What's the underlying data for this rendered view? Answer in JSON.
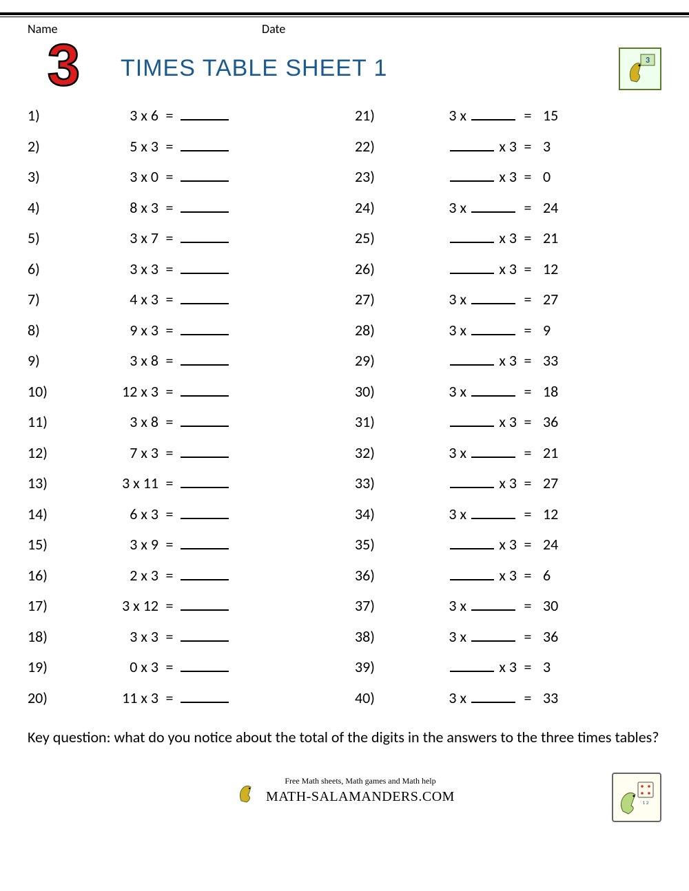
{
  "labels": {
    "name": "Name",
    "date": "Date"
  },
  "title": "TIMES TABLE SHEET 1",
  "colors": {
    "title": "#1b5a8f",
    "three_fill": "#d91c1c",
    "three_stroke": "#000000"
  },
  "left": [
    {
      "n": "1)",
      "expr": "3 x 6"
    },
    {
      "n": "2)",
      "expr": "5 x 3"
    },
    {
      "n": "3)",
      "expr": "3 x 0"
    },
    {
      "n": "4)",
      "expr": "8 x 3"
    },
    {
      "n": "5)",
      "expr": "3 x 7"
    },
    {
      "n": "6)",
      "expr": "3 x 3"
    },
    {
      "n": "7)",
      "expr": "4 x 3"
    },
    {
      "n": "8)",
      "expr": "9 x 3"
    },
    {
      "n": "9)",
      "expr": "3 x 8"
    },
    {
      "n": "10)",
      "expr": "12 x 3"
    },
    {
      "n": "11)",
      "expr": "3 x 8"
    },
    {
      "n": "12)",
      "expr": "7 x 3"
    },
    {
      "n": "13)",
      "expr": "3 x 11"
    },
    {
      "n": "14)",
      "expr": "6 x 3"
    },
    {
      "n": "15)",
      "expr": "3 x 9"
    },
    {
      "n": "16)",
      "expr": "2 x 3"
    },
    {
      "n": "17)",
      "expr": "3 x 12"
    },
    {
      "n": "18)",
      "expr": "3 x 3"
    },
    {
      "n": "19)",
      "expr": "0 x 3"
    },
    {
      "n": "20)",
      "expr": "11 x 3"
    }
  ],
  "right": [
    {
      "n": "21)",
      "pre": "3 x",
      "post": "",
      "res": "15"
    },
    {
      "n": "22)",
      "pre": "",
      "post": "x 3",
      "res": "3"
    },
    {
      "n": "23)",
      "pre": "",
      "post": "x 3",
      "res": "0"
    },
    {
      "n": "24)",
      "pre": "3 x",
      "post": "",
      "res": "24"
    },
    {
      "n": "25)",
      "pre": "",
      "post": "x 3",
      "res": "21"
    },
    {
      "n": "26)",
      "pre": "",
      "post": "x 3",
      "res": "12"
    },
    {
      "n": "27)",
      "pre": "3 x",
      "post": "",
      "res": "27"
    },
    {
      "n": "28)",
      "pre": "3 x",
      "post": "",
      "res": "9"
    },
    {
      "n": "29)",
      "pre": "",
      "post": "x 3",
      "res": "33"
    },
    {
      "n": "30)",
      "pre": "3 x",
      "post": "",
      "res": "18"
    },
    {
      "n": "31)",
      "pre": "",
      "post": "x 3",
      "res": "36"
    },
    {
      "n": "32)",
      "pre": "3 x",
      "post": "",
      "res": "21"
    },
    {
      "n": "33)",
      "pre": "",
      "post": "x 3",
      "res": "27"
    },
    {
      "n": "34)",
      "pre": "3 x",
      "post": "",
      "res": "12"
    },
    {
      "n": "35)",
      "pre": "",
      "post": "x 3",
      "res": "24"
    },
    {
      "n": "36)",
      "pre": "",
      "post": "x 3",
      "res": "6"
    },
    {
      "n": "37)",
      "pre": "3 x",
      "post": "",
      "res": "30"
    },
    {
      "n": "38)",
      "pre": "3 x",
      "post": "",
      "res": "36"
    },
    {
      "n": "39)",
      "pre": "",
      "post": "x 3",
      "res": "3"
    },
    {
      "n": "40)",
      "pre": "3 x",
      "post": "",
      "res": "33"
    }
  ],
  "key_question": "Key question: what do you notice about the total of the digits in the answers to the three times tables?",
  "footer": {
    "line1": "Free Math sheets, Math games and Math help",
    "site": "MATH-SALAMANDERS.COM"
  }
}
